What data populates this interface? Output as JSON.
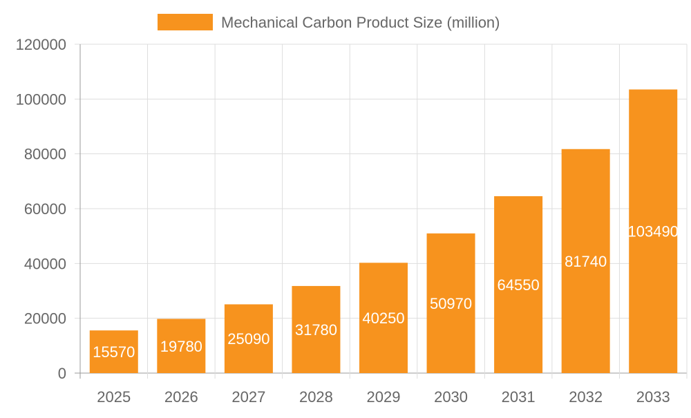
{
  "chart_data": {
    "type": "bar",
    "title": "",
    "xlabel": "",
    "ylabel": "",
    "categories": [
      "2025",
      "2026",
      "2027",
      "2028",
      "2029",
      "2030",
      "2031",
      "2032",
      "2033"
    ],
    "series": [
      {
        "name": "Mechanical Carbon Product Size (million)",
        "values": [
          15570,
          19780,
          25090,
          31780,
          40250,
          50970,
          64550,
          81740,
          103490
        ],
        "color": "#F7931E"
      }
    ],
    "ylim": [
      0,
      120000
    ],
    "yticks": [
      0,
      20000,
      40000,
      60000,
      80000,
      100000,
      120000
    ],
    "grid": true,
    "legend": "top-center",
    "data_labels": true,
    "data_label_color": "#ffffff"
  }
}
